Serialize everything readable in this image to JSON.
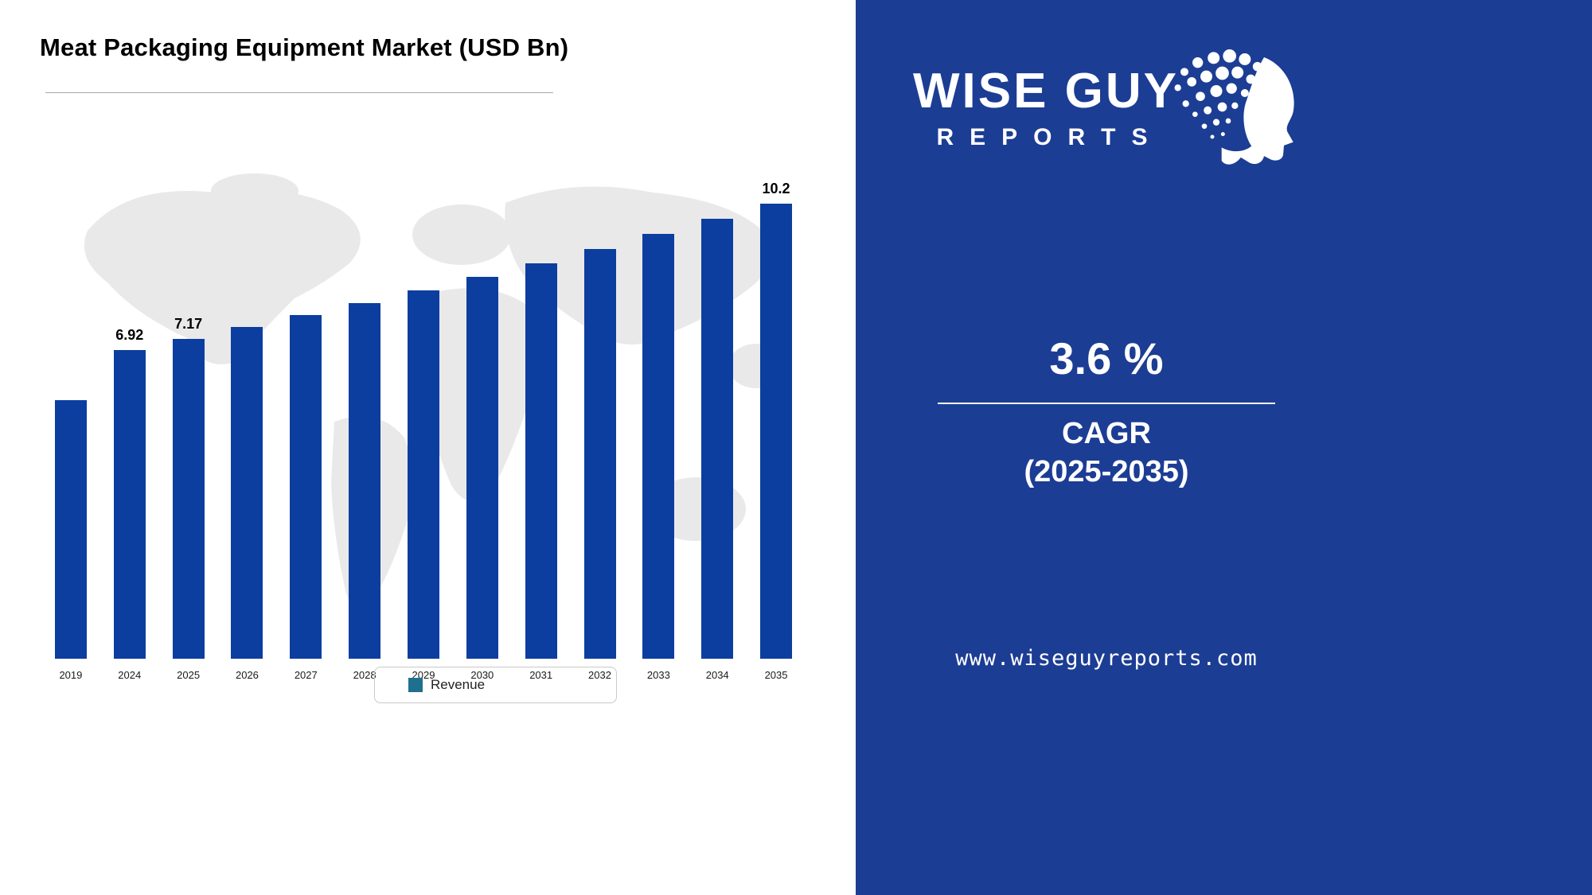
{
  "title": "Meat Packaging Equipment Market (USD Bn)",
  "chart_data": {
    "type": "bar",
    "title": "Meat Packaging Equipment Market (USD Bn)",
    "categories": [
      "2019",
      "2024",
      "2025",
      "2026",
      "2027",
      "2028",
      "2029",
      "2030",
      "2031",
      "2032",
      "2033",
      "2034",
      "2035"
    ],
    "values": [
      5.8,
      6.92,
      7.17,
      7.43,
      7.7,
      7.97,
      8.26,
      8.56,
      8.87,
      9.19,
      9.52,
      9.86,
      10.2
    ],
    "point_labels": {
      "2024": "6.92",
      "2025": "7.17",
      "2035": "10.2"
    },
    "xlabel": "",
    "ylabel": "",
    "ylim": [
      0,
      10.2
    ],
    "grid": false,
    "bar_color": "#0c3ea0",
    "legend_position": "bottom",
    "legend": [
      {
        "label": "Revenue",
        "color": "#1f6f8f"
      }
    ]
  },
  "legend": {
    "label": "Revenue",
    "color": "#1f6f8f"
  },
  "panel": {
    "background": "#1c3d94",
    "logo": {
      "line1": "WISE GUY",
      "line2": "REPORTS"
    },
    "cagr_value": "3.6 %",
    "cagr_line1": "CAGR",
    "cagr_line2": "(2025-2035)",
    "website": "www.wiseguyreports.com"
  }
}
